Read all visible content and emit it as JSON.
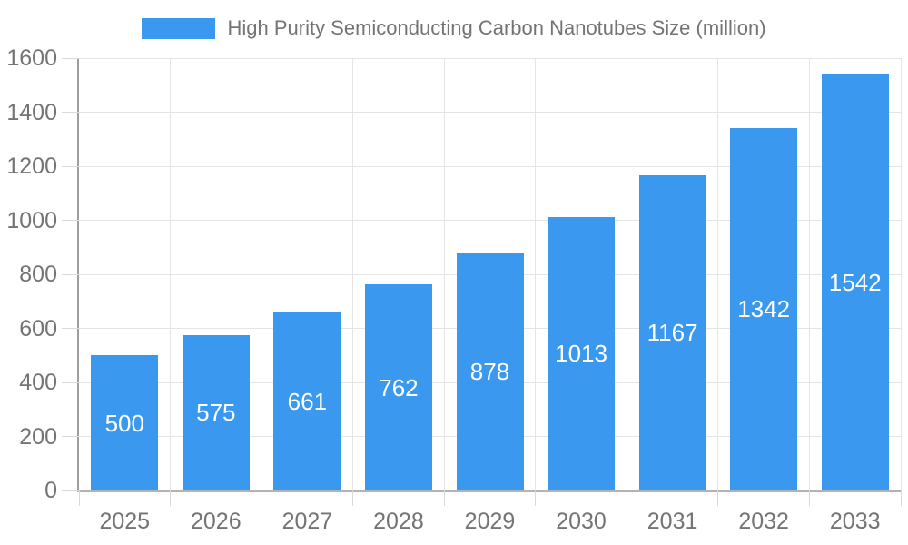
{
  "legend": {
    "label": "High Purity Semiconducting Carbon Nanotubes Size (million)"
  },
  "chart_data": {
    "type": "bar",
    "title": "High Purity Semiconducting Carbon Nanotubes Size (million)",
    "categories": [
      "2025",
      "2026",
      "2027",
      "2028",
      "2029",
      "2030",
      "2031",
      "2032",
      "2033"
    ],
    "values": [
      500,
      575,
      661,
      762,
      878,
      1013,
      1167,
      1342,
      1542
    ],
    "xlabel": "",
    "ylabel": "",
    "ylim": [
      0,
      1600
    ],
    "ytick_step": 200,
    "grid": true,
    "legend_position": "top-center",
    "bar_value_labels": "inside-center",
    "colors": {
      "bar": "#3a99ee",
      "bar_label": "#ffffff",
      "axis_text": "#747474",
      "grid_line": "#e4e4e4",
      "tick_line": "#d9d9d9",
      "y_axis_line": "#9e9e9e",
      "x_axis_line": "#b3b3b3",
      "background": "#ffffff"
    }
  }
}
